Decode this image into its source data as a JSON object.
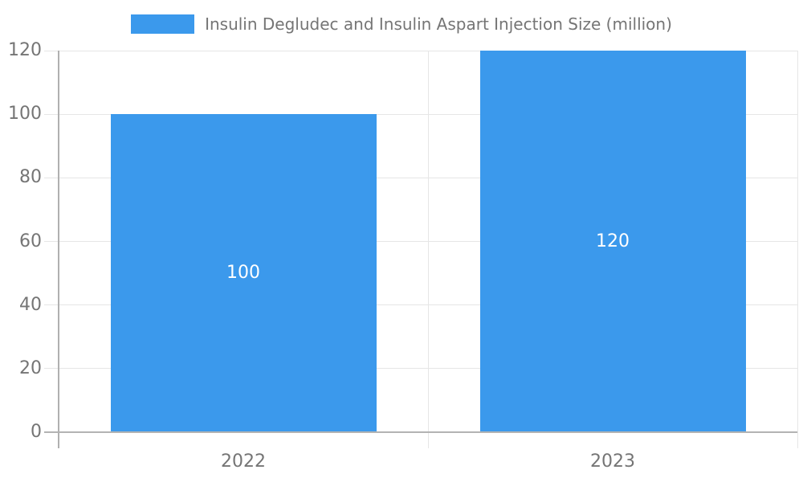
{
  "chart_data": {
    "type": "bar",
    "title": "Insulin Degludec and Insulin Aspart Injection Size (million)",
    "categories": [
      "2022",
      "2023"
    ],
    "values": [
      100,
      120
    ],
    "xlabel": "",
    "ylabel": "",
    "ylim": [
      0,
      120
    ],
    "yticks": [
      0,
      20,
      40,
      60,
      80,
      100,
      120
    ],
    "grid": true,
    "legend_position": "top",
    "legend_entries": [
      "Insulin Degludec and Insulin Aspart Injection Size (million)"
    ],
    "colors": {
      "bar": "#3b99ec",
      "data_label": "#ffffff",
      "tick_label": "#757575",
      "legend_text": "#757575",
      "gridline": "#e6e6e6",
      "axis_line": "#b3b3b3",
      "y_axis_line": "#b0b0b0",
      "background": "#ffffff"
    }
  }
}
